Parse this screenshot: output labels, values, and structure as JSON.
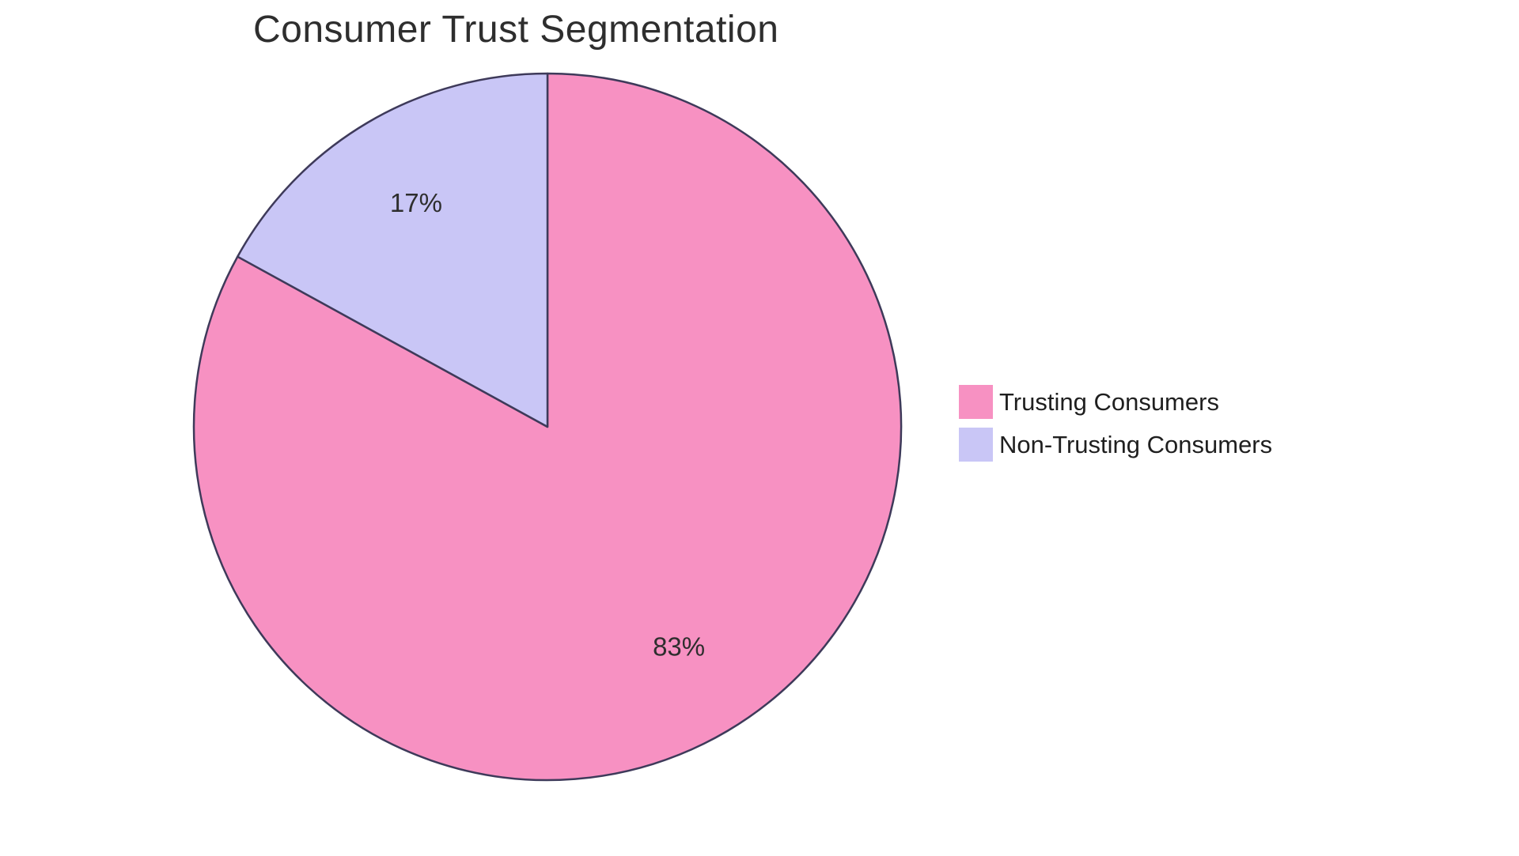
{
  "title": "Consumer Trust Segmentation",
  "chart_data": {
    "type": "pie",
    "title": "Consumer Trust Segmentation",
    "labels": [
      "Trusting Consumers",
      "Non-Trusting Consumers"
    ],
    "values": [
      83,
      17
    ],
    "percent_labels": [
      "83%",
      "17%"
    ],
    "colors": [
      "#F791C2",
      "#C9C6F6"
    ],
    "stroke_color": "#3E3A5A",
    "stroke_width": 2.5,
    "start_angle_deg": -90,
    "direction": "clockwise",
    "legend_position": "right",
    "grid": false
  }
}
